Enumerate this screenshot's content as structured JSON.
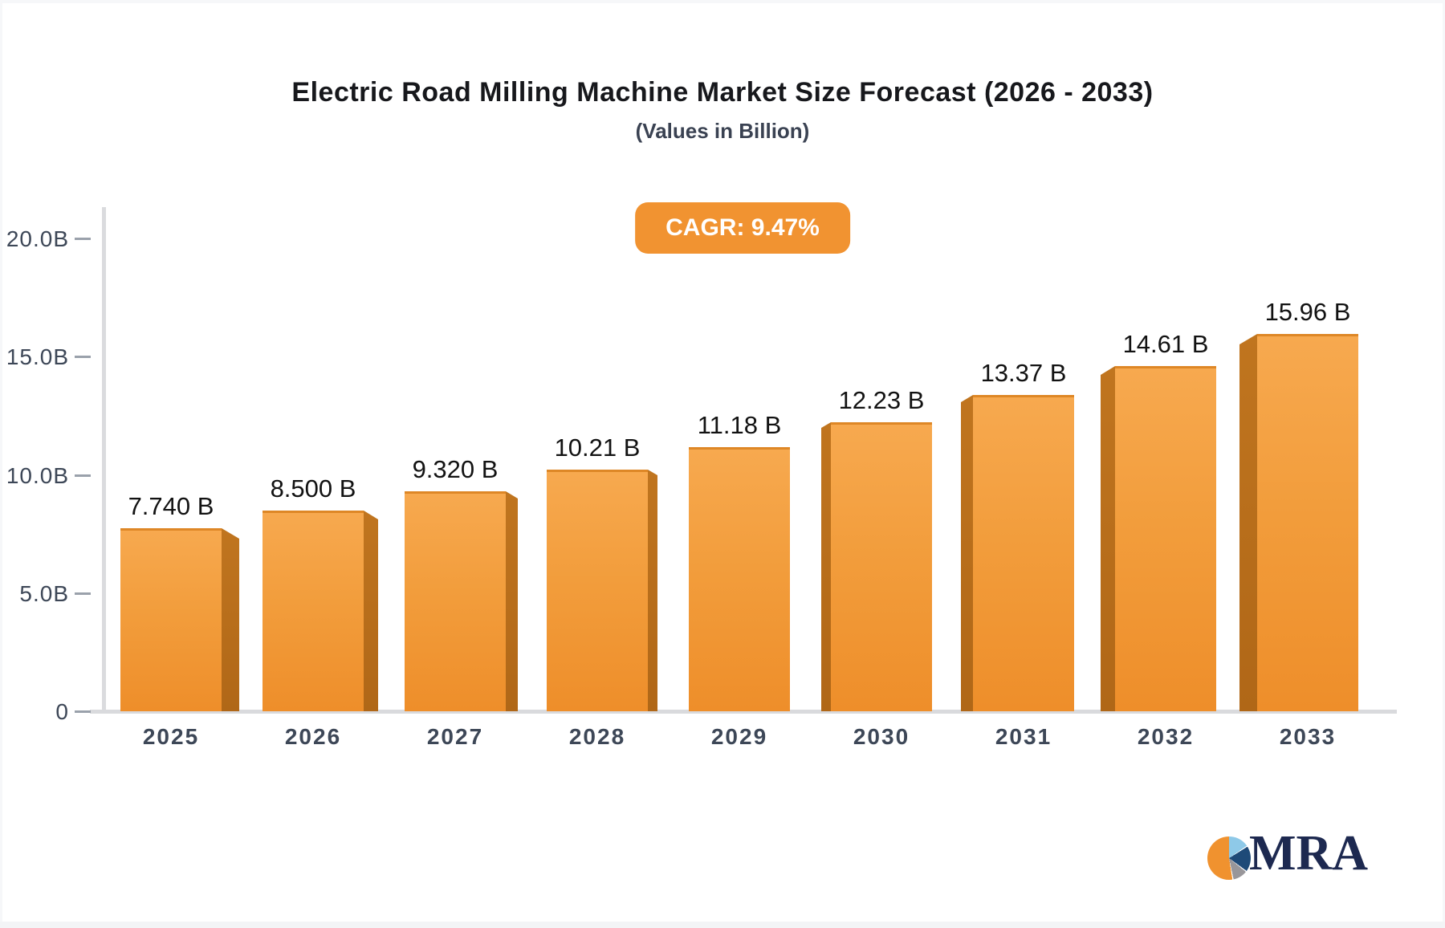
{
  "header": {
    "title": "Electric Road Milling Machine Market Size Forecast (2026 - 2033)",
    "subtitle": "(Values in Billion)",
    "cagr_badge": "CAGR: 9.47%"
  },
  "chart_data": {
    "type": "bar",
    "title": "Electric Road Milling Machine Market Size Forecast (2026 - 2033)",
    "subtitle": "(Values in Billion)",
    "cagr_percent": 9.47,
    "categories": [
      "2025",
      "2026",
      "2027",
      "2028",
      "2029",
      "2030",
      "2031",
      "2032",
      "2033"
    ],
    "values": [
      7.74,
      8.5,
      9.32,
      10.21,
      11.18,
      12.23,
      13.37,
      14.61,
      15.96
    ],
    "value_labels": [
      "7.740 B",
      "8.500 B",
      "9.320 B",
      "10.21 B",
      "11.18 B",
      "12.23 B",
      "13.37 B",
      "14.61 B",
      "15.96 B"
    ],
    "unit": "Billion",
    "xlabel": "",
    "ylabel": "",
    "ylim": [
      0,
      20
    ],
    "y_ticks": [
      {
        "value": 0,
        "label": "0"
      },
      {
        "value": 5,
        "label": "5.0B"
      },
      {
        "value": 10,
        "label": "10.0B"
      },
      {
        "value": 15,
        "label": "15.0B"
      },
      {
        "value": 20,
        "label": "20.0B"
      }
    ],
    "grid": false,
    "legend": "none",
    "colors": {
      "bar_top": "#f7a94f",
      "bar_bottom": "#ee8e2a",
      "bar_side": "#b96e1f",
      "accent": "#f19331",
      "axis_line": "#dadbde",
      "axis_text": "#3d4757",
      "value_text": "#121212"
    }
  },
  "logo": {
    "text": "MRA",
    "pie_colors": {
      "orange": "#f0922f",
      "light_blue": "#8ec9e8",
      "navy": "#1e4a78",
      "gray": "#98969a"
    }
  }
}
